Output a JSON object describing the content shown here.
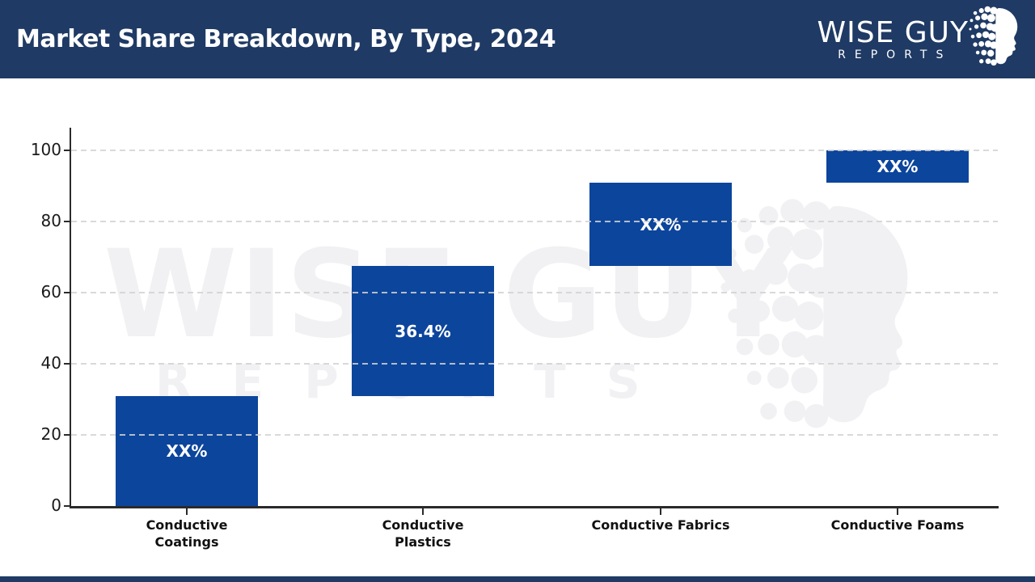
{
  "header": {
    "title": "Market Share Breakdown, By Type, 2024",
    "bg_color": "#1f3a64",
    "logo": {
      "line1": "WISE GUY",
      "line2": "REPORTS"
    }
  },
  "watermark": {
    "line1": "WISE GUY",
    "line2": "REPORTS"
  },
  "chart_data": {
    "type": "bar",
    "subtype": "floating-segment-waterfall",
    "title": "Market Share Breakdown, By Type, 2024",
    "categories": [
      "Conductive Coatings",
      "Conductive Plastics",
      "Conductive Fabrics",
      "Conductive Foams"
    ],
    "bars": [
      {
        "category": "Conductive Coatings",
        "display_category": "Conductive\nCoatings",
        "start": 0,
        "end": 31,
        "value": 31,
        "label": "XX%"
      },
      {
        "category": "Conductive Plastics",
        "display_category": "Conductive\nPlastics",
        "start": 31,
        "end": 67.4,
        "value": 36.4,
        "label": "36.4%"
      },
      {
        "category": "Conductive Fabrics",
        "display_category": "Conductive Fabrics",
        "start": 67.4,
        "end": 91,
        "value": 23.6,
        "label": "XX%"
      },
      {
        "category": "Conductive Foams",
        "display_category": "Conductive Foams",
        "start": 91,
        "end": 100,
        "value": 9,
        "label": "XX%"
      }
    ],
    "ylim": [
      0,
      100
    ],
    "yticks": [
      "0",
      "20",
      "40",
      "60",
      "80",
      "100"
    ],
    "grid": {
      "orientation": "horizontal",
      "style": "dashed",
      "drawn_over_bars": true
    },
    "bar_color": "#0c459c",
    "bar_label_color": "#ffffff",
    "axis_color": "#2a2a2a",
    "legend": "none"
  },
  "footer": {
    "bg_color": "#1f3a64"
  }
}
